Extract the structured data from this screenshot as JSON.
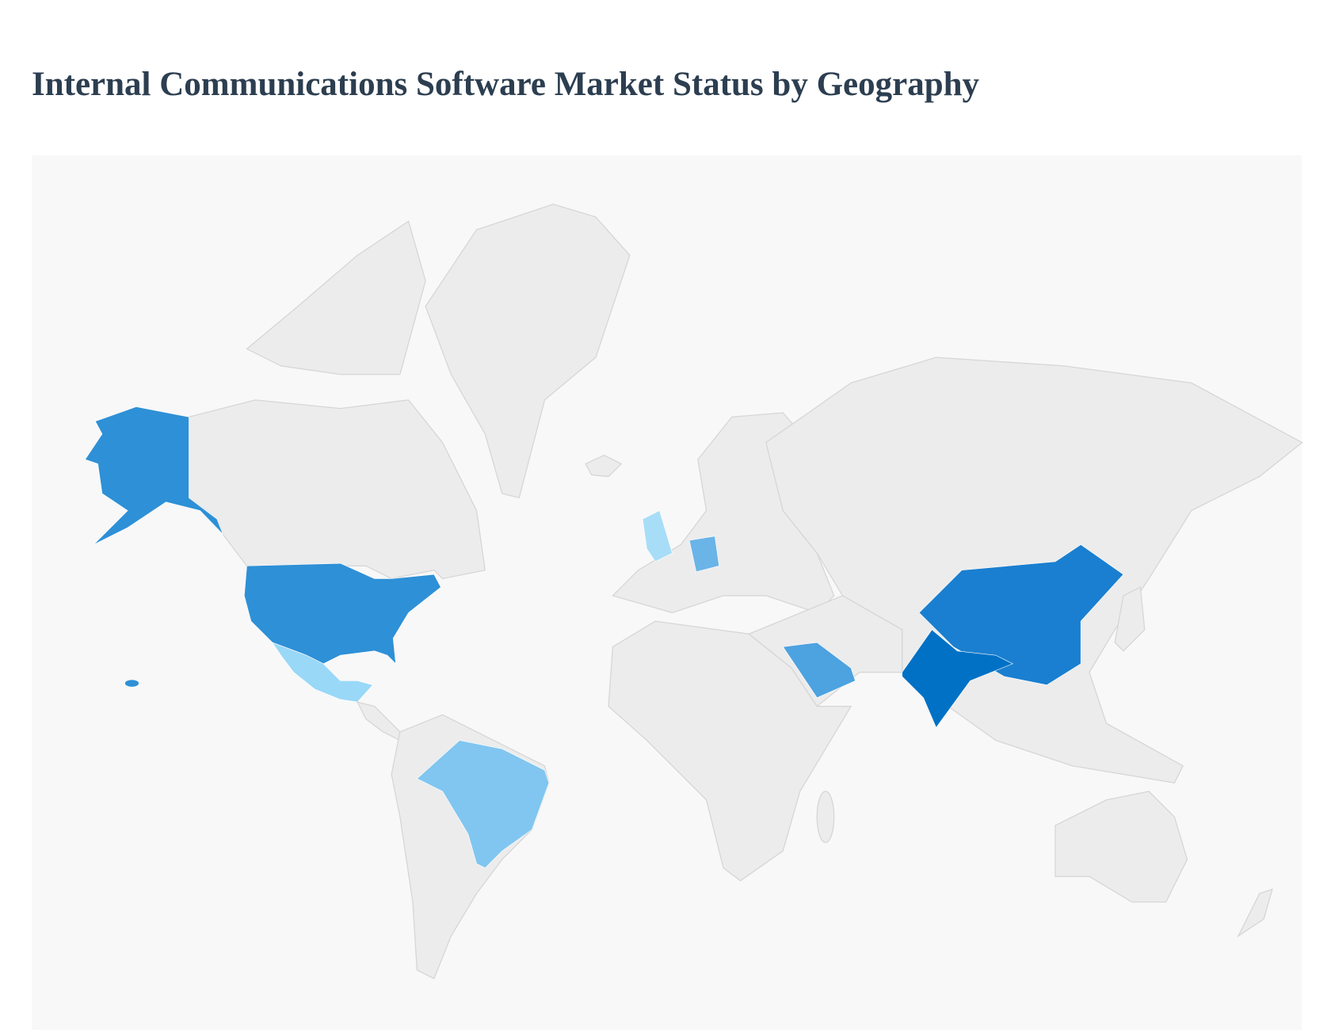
{
  "header": {
    "title": "Internal Communications Software Market Status by Geography"
  }
}
